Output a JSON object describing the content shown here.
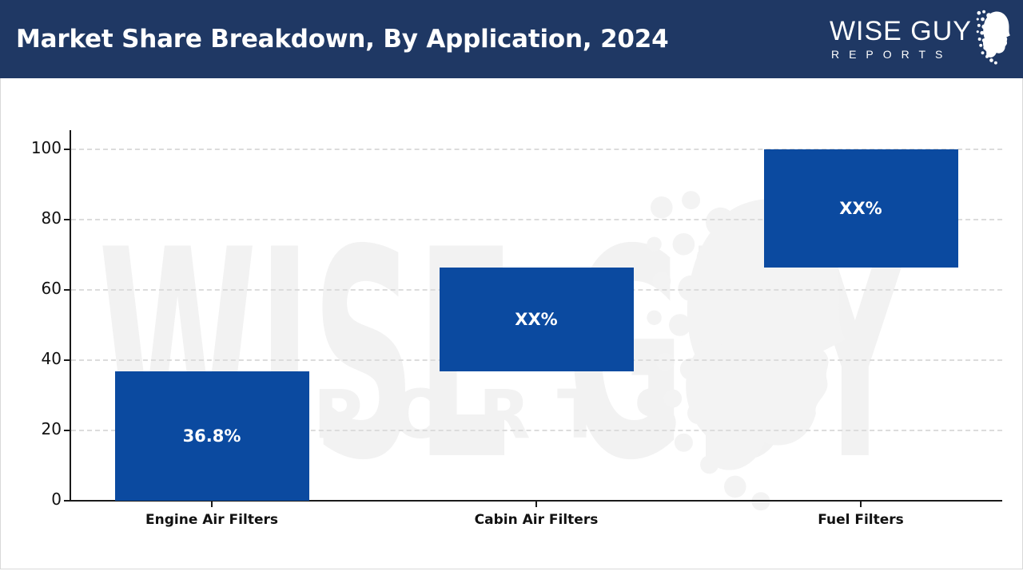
{
  "header": {
    "title": "Market Share Breakdown, By Application, 2024",
    "logo": {
      "wordmark": "WISE GUY",
      "subtext": "REPORTS"
    }
  },
  "watermark": {
    "line1": "WISE GUY",
    "line2": "REPORTS"
  },
  "chart_data": {
    "type": "bar",
    "subtype": "percent-breakdown-waterfall",
    "title": "Market Share Breakdown, By Application, 2024",
    "categories": [
      "Engine Air Filters",
      "Cabin Air Filters",
      "Fuel Filters"
    ],
    "segments": [
      {
        "category": "Engine Air Filters",
        "start": 0,
        "end": 36.8,
        "value": 36.8,
        "label": "36.8%"
      },
      {
        "category": "Cabin Air Filters",
        "start": 36.8,
        "end": 66.3,
        "value": 29.5,
        "label": "XX%"
      },
      {
        "category": "Fuel Filters",
        "start": 66.3,
        "end": 100,
        "value": 33.7,
        "label": "XX%"
      }
    ],
    "yticks": [
      0,
      20,
      40,
      60,
      80,
      100
    ],
    "ylim": [
      0,
      105
    ],
    "grid": "horizontal dashed",
    "legend": "none",
    "bar_color": "#0b4aa0",
    "bar_label_color": "#ffffff",
    "axis_color": "#1a1a1a",
    "grid_color": "#dcdcdc"
  },
  "colors": {
    "header_bg": "#1f3864",
    "card_border": "#d9d9d9",
    "watermark": "#f2f2f2",
    "text": "#111111"
  }
}
